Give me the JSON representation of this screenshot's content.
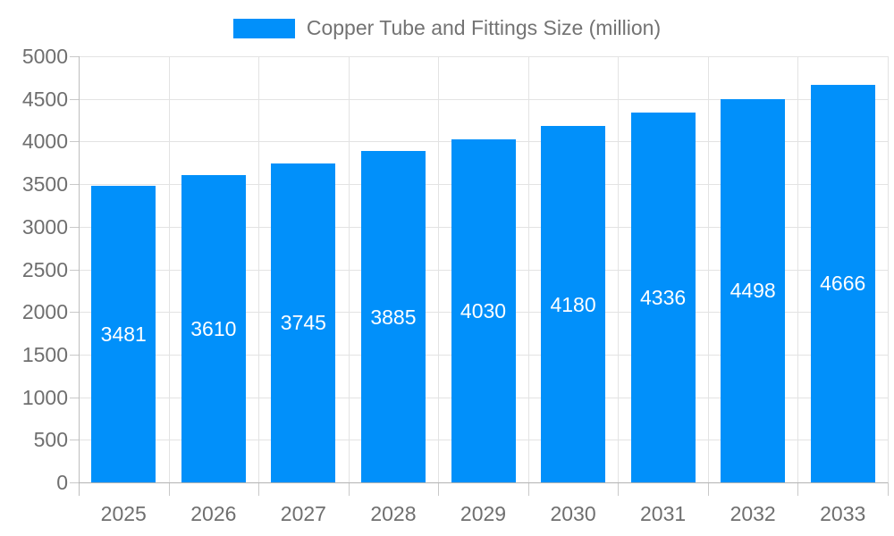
{
  "legend": {
    "label": "Copper Tube and Fittings Size (million)"
  },
  "colors": {
    "bar": "#0190fa",
    "grid": "#e3e3e3",
    "axis": "#b3b3b3",
    "tick_text": "#6f6f6f",
    "bar_label": "#ffffff",
    "legend_text": "#737373"
  },
  "chart_data": {
    "type": "bar",
    "title": "Copper Tube and Fittings Size (million)",
    "categories": [
      "2025",
      "2026",
      "2027",
      "2028",
      "2029",
      "2030",
      "2031",
      "2032",
      "2033"
    ],
    "values": [
      3481,
      3610,
      3745,
      3885,
      4030,
      4180,
      4336,
      4498,
      4666
    ],
    "xlabel": "",
    "ylabel": "",
    "ylim": [
      0,
      5000
    ],
    "ytick_step": 500,
    "grid": true,
    "legend_position": "top",
    "bar_labels_inside": true
  }
}
